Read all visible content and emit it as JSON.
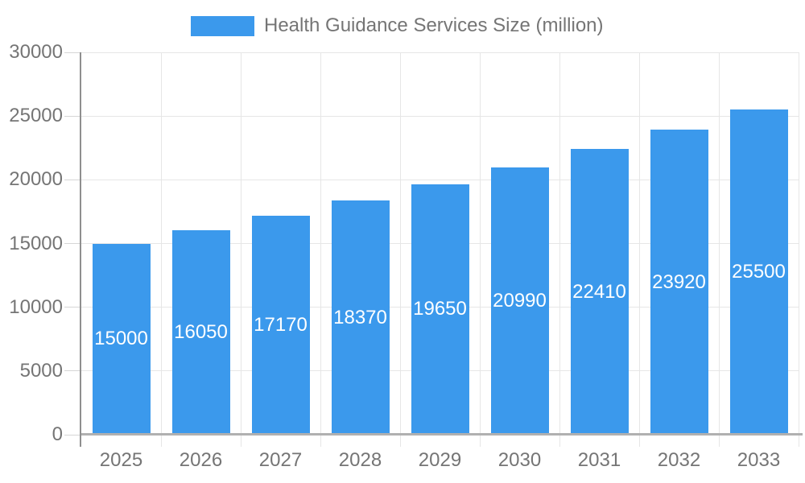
{
  "chart_data": {
    "type": "bar",
    "series_name": "Health Guidance Services Size (million)",
    "categories": [
      "2025",
      "2026",
      "2027",
      "2028",
      "2029",
      "2030",
      "2031",
      "2032",
      "2033"
    ],
    "values": [
      15000,
      16050,
      17170,
      18370,
      19650,
      20990,
      22410,
      23920,
      25500
    ],
    "ylim": [
      0,
      30000
    ],
    "y_ticks": [
      0,
      5000,
      10000,
      15000,
      20000,
      25000,
      30000
    ],
    "grid": true,
    "legend_position": "top",
    "bar_labels_inside": true,
    "colors": {
      "bar": "#3b99ec",
      "bar_label": "#ffffff",
      "axis_text": "#757575",
      "grid_line": "#e6e6e6",
      "y_axis_line": "#8f8f8f",
      "x_axis_line": "#b0b0b0",
      "tick_mark": "#d6d6d6",
      "background": "#ffffff"
    }
  }
}
